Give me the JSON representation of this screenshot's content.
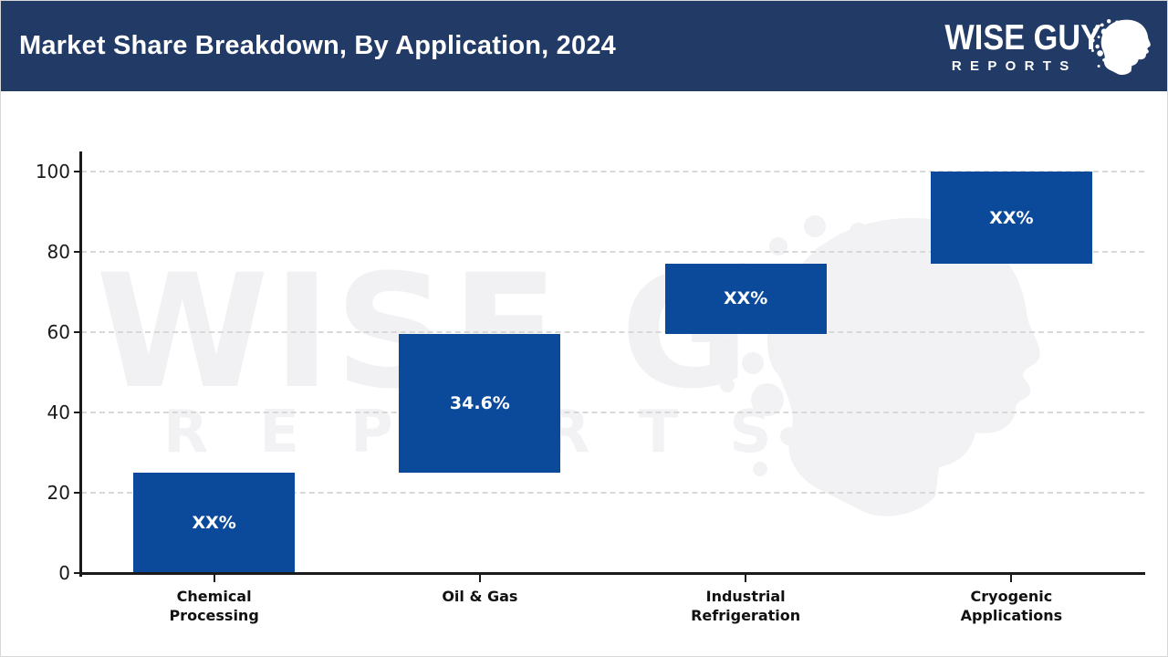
{
  "header": {
    "title": "Market Share Breakdown, By Application, 2024",
    "logo": {
      "primary": "WISE GUY",
      "secondary": "REPORTS"
    }
  },
  "watermark": {
    "primary": "WISE GUY",
    "secondary": "REPORTS"
  },
  "colors": {
    "header_bg": "#213a66",
    "bar": "#0b499b",
    "grid": "#d8d8d8",
    "axis": "#1a1a1a",
    "value_label": "#ffffff",
    "watermark": "#f1f1f4"
  },
  "chart_data": {
    "type": "bar",
    "variant": "floating-waterfall",
    "title": "Market Share Breakdown, By Application, 2024",
    "categories": [
      "Chemical Processing",
      "Oil & Gas",
      "Industrial Refrigeration",
      "Cryogenic Applications"
    ],
    "category_label_lines": [
      [
        "Chemical",
        "Processing"
      ],
      [
        "Oil & Gas"
      ],
      [
        "Industrial",
        "Refrigeration"
      ],
      [
        "Cryogenic",
        "Applications"
      ]
    ],
    "series": [
      {
        "name": "Market share (%)",
        "segments": [
          {
            "category": "Chemical Processing",
            "start": 0,
            "end": 25,
            "label": "XX%"
          },
          {
            "category": "Oil & Gas",
            "start": 25,
            "end": 59.6,
            "label": "34.6%"
          },
          {
            "category": "Industrial Refrigeration",
            "start": 59.6,
            "end": 77,
            "label": "XX%"
          },
          {
            "category": "Cryogenic Applications",
            "start": 77,
            "end": 100,
            "label": "XX%"
          }
        ]
      }
    ],
    "ylim": [
      0,
      100
    ],
    "yticks": [
      0,
      20,
      40,
      60,
      80,
      100
    ],
    "xlabel": "",
    "ylabel": "",
    "grid": {
      "horizontal": true,
      "style": "dashed"
    },
    "legend": false
  }
}
